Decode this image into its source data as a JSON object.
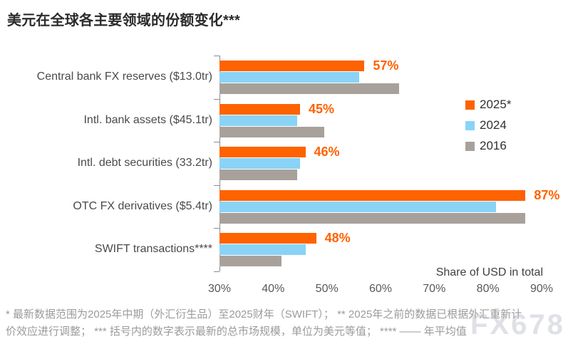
{
  "page": {
    "title": "美元在全球各主要领域的份额变化***"
  },
  "chart_data": {
    "type": "bar",
    "orientation": "horizontal",
    "title": "美元在全球各主要领域的份额变化***",
    "xlabel": "Share of USD in total",
    "xlim": [
      30,
      90
    ],
    "x_tick_labels": [
      "30%",
      "40%",
      "50%",
      "60%",
      "70%",
      "80%",
      "90%"
    ],
    "grid": false,
    "legend_position": "right",
    "categories": [
      "Central bank FX reserves ($13.0tr)",
      "Intl. bank assets ($45.1tr)",
      "Intl. debt securities (33.2tr)",
      "OTC FX derivatives ($5.4tr)",
      "SWIFT transactions****"
    ],
    "series": [
      {
        "name": "2025*",
        "color": "#FF6200",
        "values": [
          57,
          45,
          46,
          87,
          48
        ]
      },
      {
        "name": "2024",
        "color": "#8AD3F7",
        "values": [
          56,
          44.5,
          45,
          81.5,
          46
        ]
      },
      {
        "name": "2016",
        "color": "#A8A19B",
        "values": [
          63.5,
          49.5,
          44.5,
          87,
          41.5
        ]
      }
    ],
    "value_labels": [
      "57%",
      "45%",
      "46%",
      "87%",
      "48%"
    ]
  },
  "footnote": {
    "line1": "* 最新数据范围为2025年中期（外汇衍生品）至2025财年（SWIFT）； ** 2025年之前的数据已根据外汇重新计",
    "line2": "价效应进行调整； *** 括号内的数字表示最新的总市场规模，单位为美元等值； **** —— 年平均值"
  },
  "watermark": "FX678",
  "colors": {
    "accent_orange": "#FF6200",
    "light_blue": "#8AD3F7",
    "taupe_gray": "#A8A19B",
    "axis_gray": "#8c8c8c"
  }
}
